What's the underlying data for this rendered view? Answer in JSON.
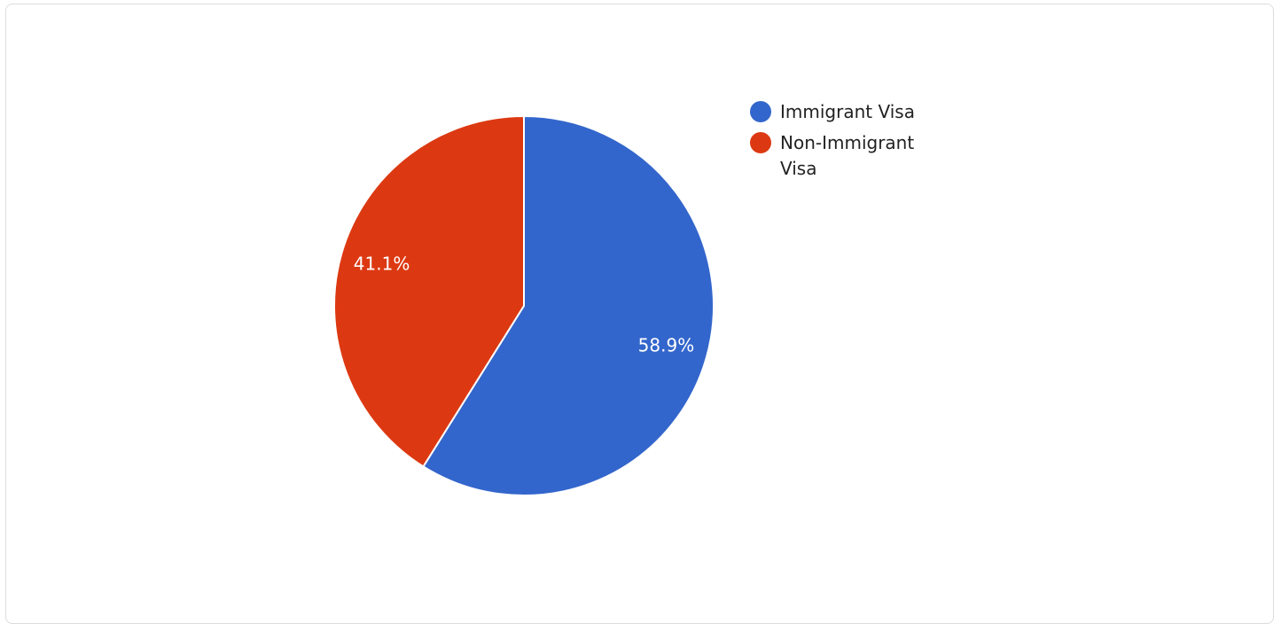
{
  "chart_data": {
    "type": "pie",
    "slices": [
      {
        "label": "Immigrant Visa",
        "value": 58.9,
        "value_label": "58.9%",
        "color": "#3366cc"
      },
      {
        "label": "Non-Immigrant Visa",
        "value": 41.1,
        "value_label": "41.1%",
        "color": "#dc3912"
      }
    ],
    "legend": "right"
  }
}
